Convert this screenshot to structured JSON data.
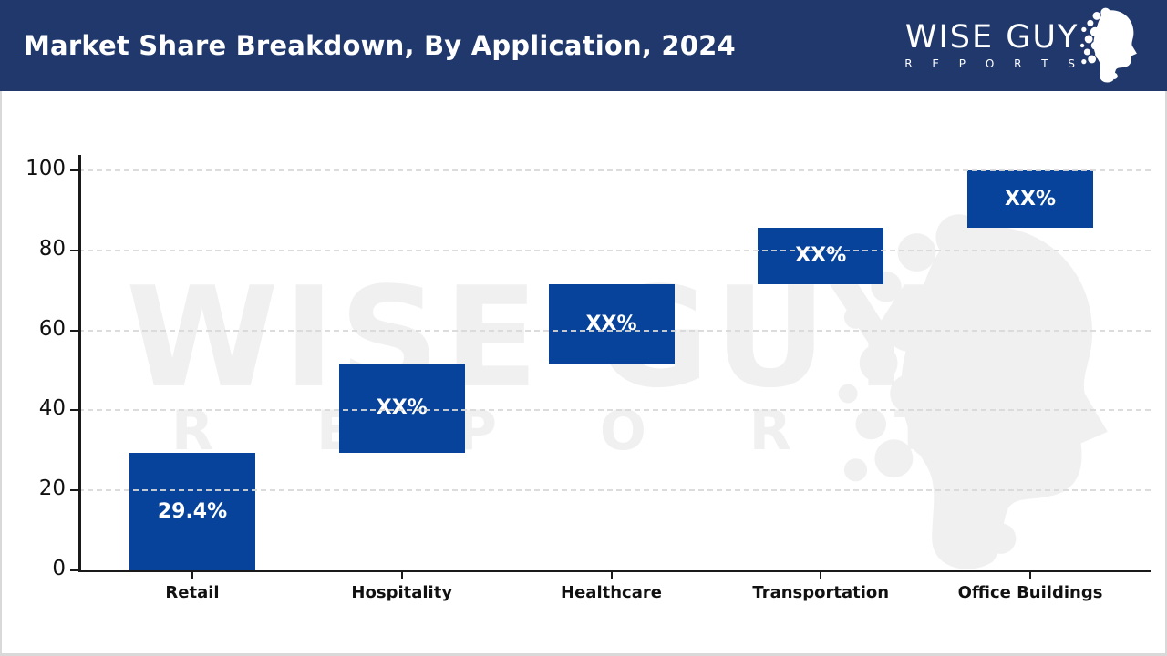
{
  "header": {
    "title": "Market Share Breakdown, By Application, 2024",
    "logo": {
      "brand_line1": "WISE GUY",
      "brand_line2": "R E P O R T S"
    }
  },
  "watermark": {
    "line1": "WISE GUY",
    "line2": "R E P O R T S"
  },
  "colors": {
    "header_bg": "#20386b",
    "bar": "#07439a",
    "bar_label": "#ffffff",
    "grid": "#d9d9d9",
    "axis": "#1a1a1a",
    "tick_text": "#111111",
    "watermark": "#f0f0f0"
  },
  "chart_data": {
    "type": "bar",
    "subtype": "waterfall-floating-bars",
    "title": "Market Share Breakdown, By Application, 2024",
    "categories": [
      "Retail",
      "Hospitality",
      "Healthcare",
      "Transportation",
      "Office Buildings"
    ],
    "segments": [
      {
        "category": "Retail",
        "start": 0,
        "end": 29.4,
        "label": "29.4%"
      },
      {
        "category": "Hospitality",
        "start": 29.4,
        "end": 51.8,
        "label": "XX%"
      },
      {
        "category": "Healthcare",
        "start": 51.8,
        "end": 71.5,
        "label": "XX%"
      },
      {
        "category": "Transportation",
        "start": 71.5,
        "end": 85.7,
        "label": "XX%"
      },
      {
        "category": "Office Buildings",
        "start": 85.7,
        "end": 100,
        "label": "XX%"
      }
    ],
    "y_ticks": [
      0,
      20,
      40,
      60,
      80,
      100
    ],
    "ylim": [
      0,
      104
    ],
    "xlabel": "",
    "ylabel": "",
    "grid": "horizontal-dashed",
    "legend": "none"
  }
}
